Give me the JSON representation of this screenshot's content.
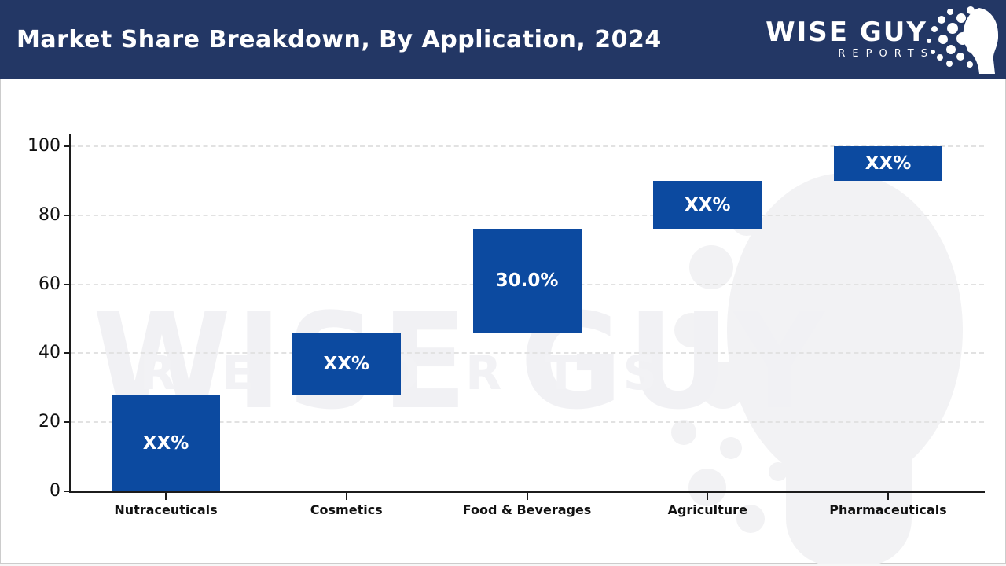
{
  "header": {
    "title": "Market Share Breakdown, By Application, 2024",
    "brand": {
      "line1": "WISE GUY",
      "line2": "REPORTS"
    }
  },
  "watermark": {
    "line1": "WISE GUY",
    "line2": "REPORTS"
  },
  "colors": {
    "header_bg": "#233765",
    "bar_fill": "#0c4aa0",
    "bar_label": "#ffffff",
    "axis": "#1c1c1c",
    "grid": "#e2e2e2"
  },
  "chart_data": {
    "type": "bar",
    "subtype": "waterfall",
    "title": "Market Share Breakdown, By Application, 2024",
    "categories": [
      "Nutraceuticals",
      "Cosmetics",
      "Food & Beverages",
      "Agriculture",
      "Pharmaceuticals"
    ],
    "segments": [
      {
        "category": "Nutraceuticals",
        "start": 0,
        "end": 28,
        "label": "XX%"
      },
      {
        "category": "Cosmetics",
        "start": 28,
        "end": 46,
        "label": "XX%"
      },
      {
        "category": "Food & Beverages",
        "start": 46,
        "end": 76,
        "label": "30.0%"
      },
      {
        "category": "Agriculture",
        "start": 76,
        "end": 90,
        "label": "XX%"
      },
      {
        "category": "Pharmaceuticals",
        "start": 90,
        "end": 100,
        "label": "XX%"
      }
    ],
    "xlabel": "",
    "ylabel": "",
    "yticks": [
      0,
      20,
      40,
      60,
      80,
      100
    ],
    "ylim": [
      0,
      103.5
    ],
    "grid": "horizontal-dashed",
    "legend": "none"
  }
}
